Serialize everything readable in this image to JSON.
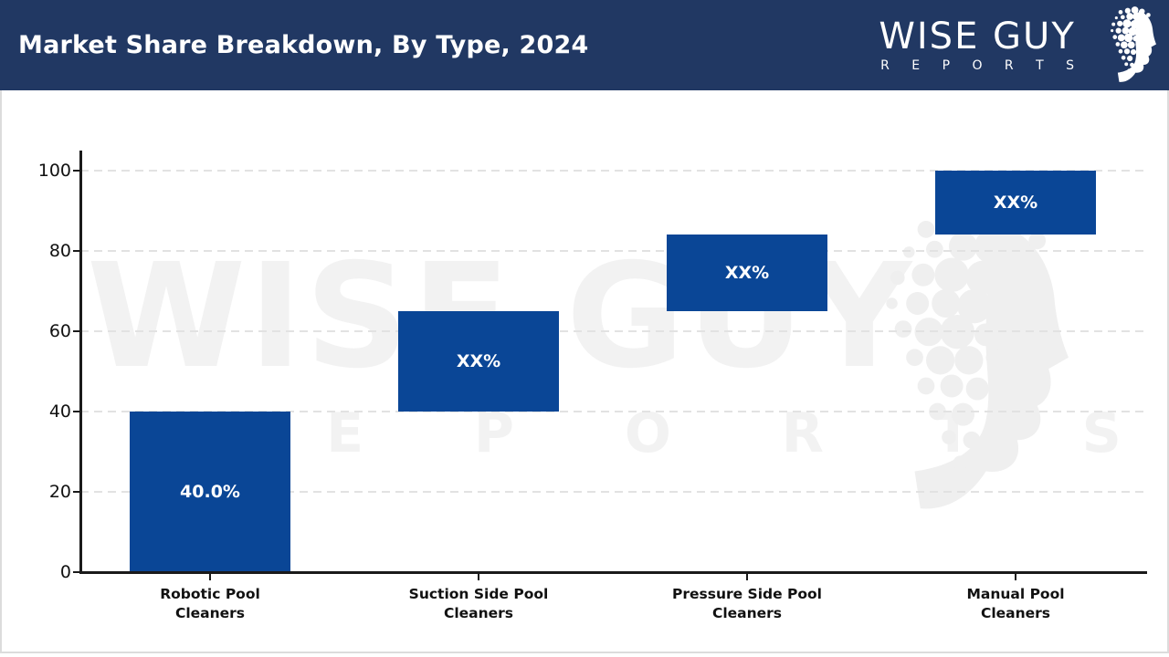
{
  "header": {
    "title": "Market Share Breakdown, By Type, 2024",
    "logo": {
      "line1": "WISE GUY",
      "line2": "R E P O R T S"
    }
  },
  "watermark": {
    "line1": "WISE GUY",
    "line2": "R E P O R T S"
  },
  "colors": {
    "header_bg": "#213863",
    "bar": "#0A4696",
    "bar_label": "#ffffff",
    "gridline": "#e2e2e2",
    "axis": "#1a1a1a",
    "watermark": "#f2f2f2"
  },
  "icons": {
    "logo_head": "wiseguy-dotted-head-icon"
  },
  "chart_data": {
    "type": "bar",
    "subtype": "waterfall",
    "title": "Market Share Breakdown, By Type, 2024",
    "xlabel": "",
    "ylabel": "",
    "ylim": [
      0,
      105
    ],
    "yticks": [
      0,
      20,
      40,
      60,
      80,
      100
    ],
    "grid": "horizontal-dashed",
    "legend": "none",
    "categories": [
      "Robotic Pool\nCleaners",
      "Suction Side Pool\nCleaners",
      "Pressure Side Pool\nCleaners",
      "Manual Pool\nCleaners"
    ],
    "segments": [
      {
        "category": "Robotic Pool\nCleaners",
        "from": 0,
        "to": 40,
        "label": "40.0%"
      },
      {
        "category": "Suction Side Pool\nCleaners",
        "from": 40,
        "to": 65,
        "label": "XX%"
      },
      {
        "category": "Pressure Side Pool\nCleaners",
        "from": 65,
        "to": 84,
        "label": "XX%"
      },
      {
        "category": "Manual Pool\nCleaners",
        "from": 84,
        "to": 100,
        "label": "XX%"
      }
    ]
  }
}
